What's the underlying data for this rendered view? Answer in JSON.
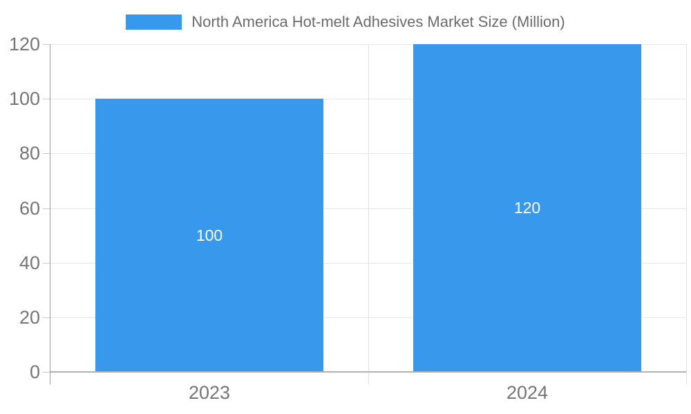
{
  "chart_data": {
    "type": "bar",
    "title": "North America Hot-melt Adhesives Market Size (Million)",
    "categories": [
      "2023",
      "2024"
    ],
    "values": [
      100,
      120
    ],
    "ylim": [
      0,
      120
    ],
    "yticks": [
      0,
      20,
      40,
      60,
      80,
      100,
      120
    ],
    "legend_position": "top",
    "grid": true,
    "bar_color": "#3898ec",
    "value_label_color": "#ffffff"
  },
  "colors": {
    "bar": "#3898ec",
    "gridline": "#e6e6e6",
    "category_boundary": "#e0e0e0",
    "y_axis": "#999999",
    "baseline": "#b0b0b0",
    "tick_text": "#757575",
    "legend_text": "#6b6b6b"
  }
}
